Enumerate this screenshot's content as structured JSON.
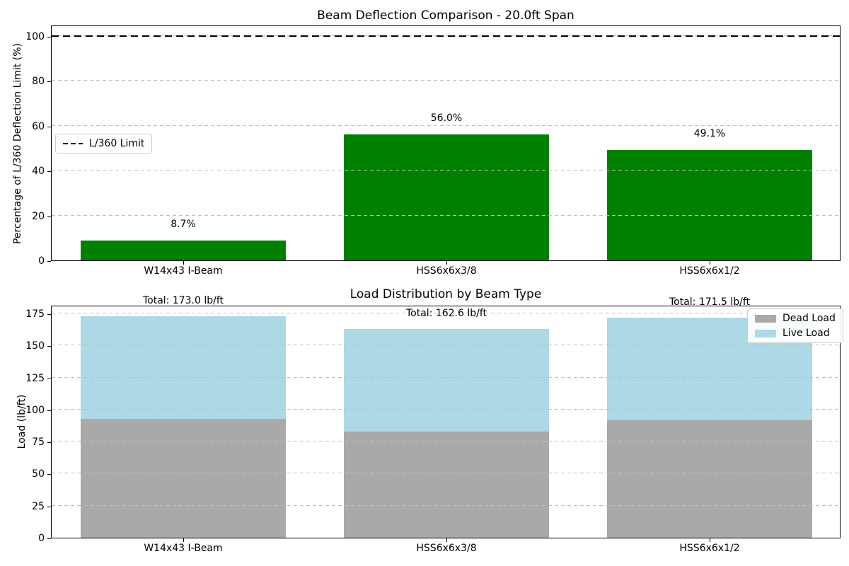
{
  "figure": {
    "background": "#ffffff"
  },
  "grid_color": "#bfbfbf",
  "chart_data": [
    {
      "type": "bar",
      "title": "Beam Deflection Comparison - 20.0ft Span",
      "ylabel": "Percentage of L/360 Deflection Limit (%)",
      "categories": [
        "W14x43 I-Beam",
        "HSS6x6x3/8",
        "HSS6x6x1/2"
      ],
      "values": [
        8.7,
        56.0,
        49.1
      ],
      "bar_labels": [
        "8.7%",
        "56.0%",
        "49.1%"
      ],
      "bar_color": "#008000",
      "ylim": [
        0,
        105
      ],
      "yticks": [
        0,
        20,
        40,
        60,
        80,
        100
      ],
      "grid": "dashed-horizontal",
      "threshold": {
        "value": 100,
        "label": "L/360 Limit",
        "color": "#000000",
        "style": "dashed"
      },
      "legend_position": "center-left"
    },
    {
      "type": "stacked-bar",
      "title": "Load Distribution by Beam Type",
      "ylabel": "Load (lb/ft)",
      "categories": [
        "W14x43 I-Beam",
        "HSS6x6x3/8",
        "HSS6x6x1/2"
      ],
      "series": [
        {
          "name": "Dead Load",
          "color": "#A9A9A9",
          "values": [
            93.0,
            82.6,
            91.5
          ]
        },
        {
          "name": "Live Load",
          "color": "#ADD8E6",
          "values": [
            80.0,
            80.0,
            80.0
          ]
        }
      ],
      "totals": [
        173.0,
        162.6,
        171.5
      ],
      "total_labels": [
        "Total: 173.0 lb/ft",
        "Total: 162.6 lb/ft",
        "Total: 171.5 lb/ft"
      ],
      "ylim": [
        0,
        181.6
      ],
      "yticks": [
        0,
        25,
        50,
        75,
        100,
        125,
        150,
        175
      ],
      "grid": "dashed-horizontal",
      "legend_position": "upper-right"
    }
  ]
}
